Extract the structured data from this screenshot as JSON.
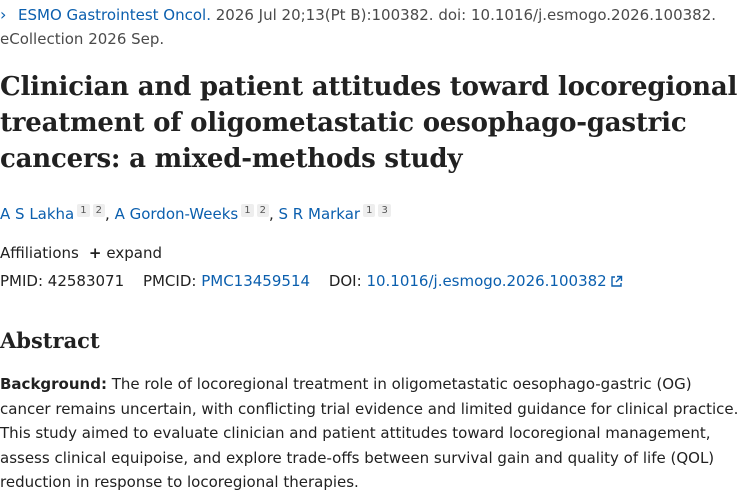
{
  "citation": {
    "journal": "ESMO Gastrointest Oncol.",
    "details": " 2026 Jul 20;13(Pt B):100382. doi: 10.1016/j.esmogo.2026.100382. eCollection 2026 Sep."
  },
  "title": "Clinician and patient attitudes toward locoregional treatment of oligometastatic oesophago-gastric cancers: a mixed-methods study",
  "authors": [
    {
      "name": "A S Lakha",
      "affils": [
        "1",
        "2"
      ]
    },
    {
      "name": "A Gordon-Weeks",
      "affils": [
        "1",
        "2"
      ]
    },
    {
      "name": "S R Markar",
      "affils": [
        "1",
        "3"
      ]
    }
  ],
  "affiliations": {
    "label": "Affiliations",
    "expand_label": "expand"
  },
  "identifiers": {
    "pmid_label": "PMID:",
    "pmid": "42583071",
    "pmcid_label": "PMCID:",
    "pmcid": "PMC13459514",
    "doi_label": "DOI:",
    "doi": "10.1016/j.esmogo.2026.100382"
  },
  "abstract": {
    "heading": "Abstract",
    "background_label": "Background:",
    "background_text": " The role of locoregional treatment in oligometastatic oesophago-gastric (OG) cancer remains uncertain, with conflicting trial evidence and limited guidance for clinical practice. This study aimed to evaluate clinician and patient attitudes toward locoregional management, assess clinical equipoise, and explore trade-offs between survival gain and quality of life (QOL) reduction in response to locoregional therapies."
  },
  "colors": {
    "link": "#0b5fae",
    "text": "#212121",
    "muted": "#4a4a4a"
  }
}
